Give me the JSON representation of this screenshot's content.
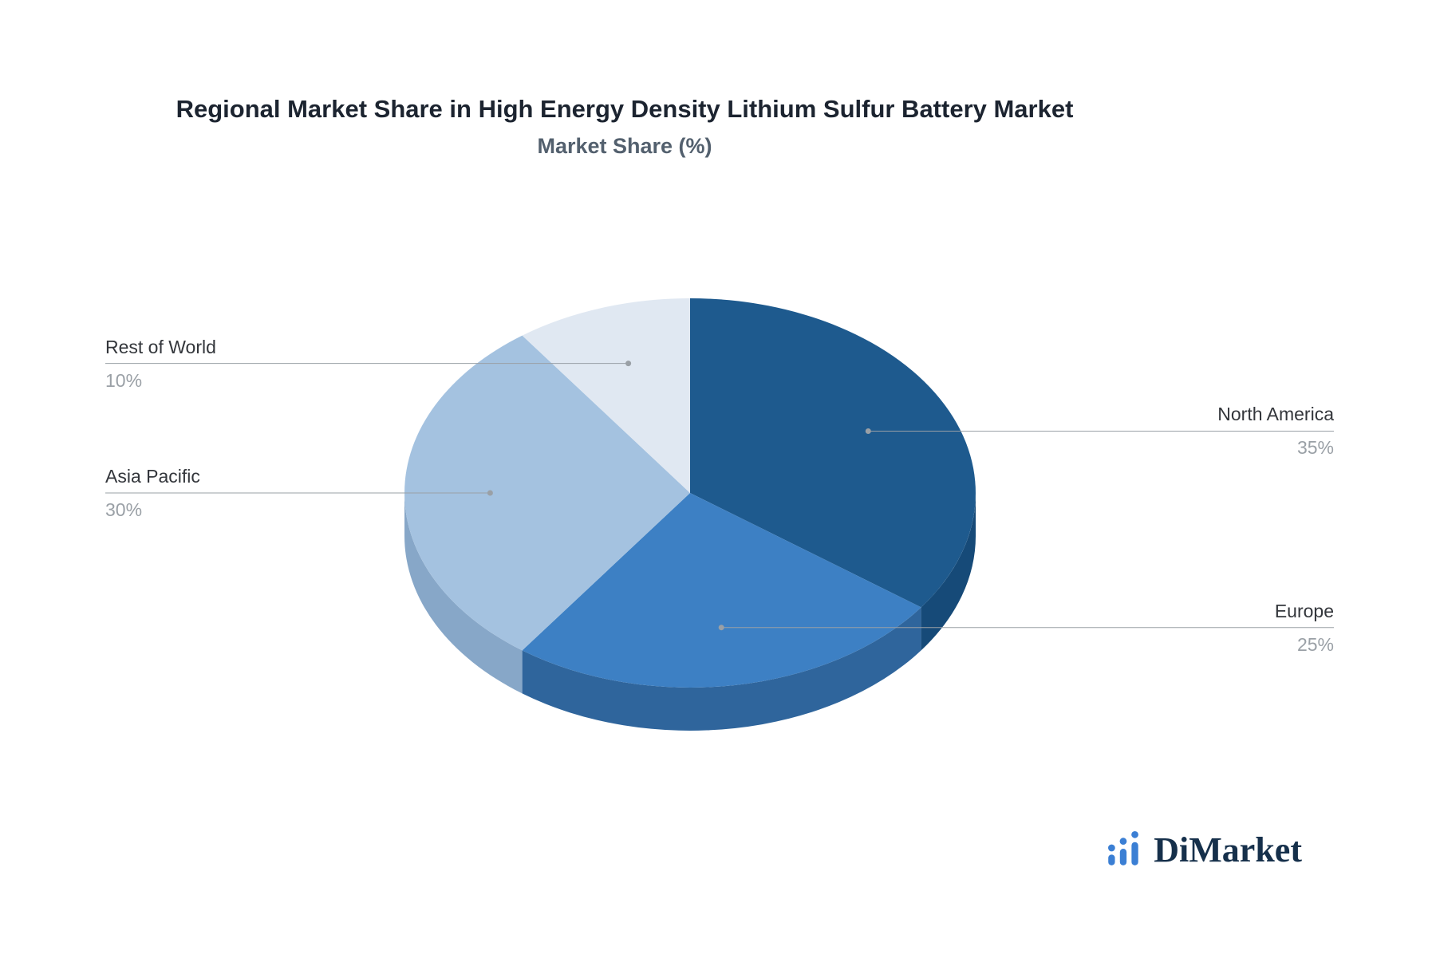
{
  "page": {
    "background": "#ffffff"
  },
  "header": {
    "title": "Regional Market Share in High Energy Density Lithium Sulfur Battery Market",
    "subtitle": "Market Share (%)"
  },
  "brand": {
    "name": "DiMarket",
    "icon": "bar-chart-logo-icon",
    "text_color": "#16304b",
    "icon_color": "#3b7fd4"
  },
  "chart_data": {
    "type": "pie",
    "style": "3d",
    "title": "Regional Market Share in High Energy Density Lithium Sulfur Battery Market",
    "subtitle": "Market Share (%)",
    "unit": "%",
    "start_angle": "12-o-clock",
    "direction": "clockwise",
    "legend_position": "none",
    "labels": [
      "North America",
      "Europe",
      "Asia Pacific",
      "Rest of World"
    ],
    "values": [
      35,
      25,
      30,
      10
    ],
    "value_labels": [
      "35%",
      "25%",
      "30%",
      "10%"
    ],
    "colors": [
      "#1e5a8e",
      "#3d80c4",
      "#a4c2e0",
      "#e0e8f2"
    ],
    "side_colors": [
      "#164a78",
      "#2f659c",
      "#87a7c8",
      "#c2cfdf"
    ],
    "callout_line_color": "#9aa0a6",
    "label_color": "#33363b",
    "value_label_color": "#9aa0a6"
  }
}
